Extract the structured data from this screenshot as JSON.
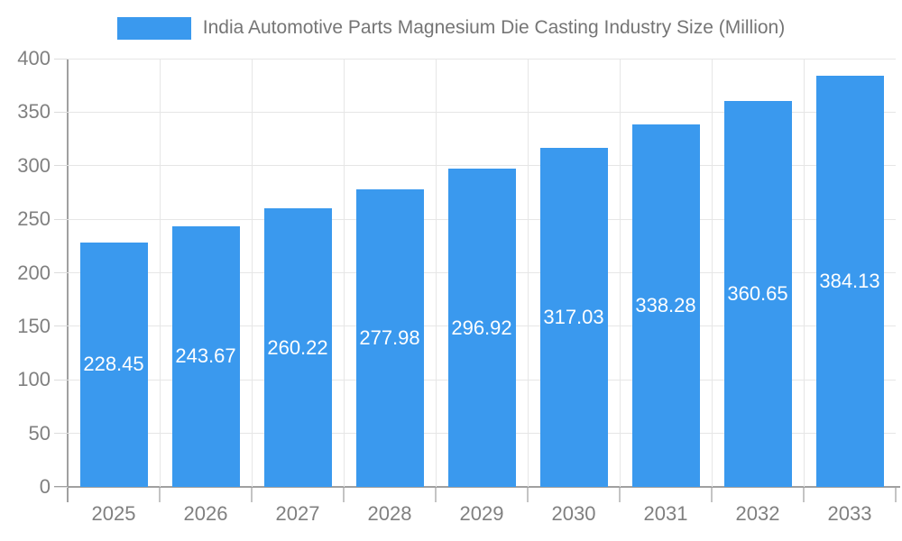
{
  "legend": {
    "label": "India Automotive Parts Magnesium Die Casting Industry Size (Million)",
    "swatch_color": "#3A99EE"
  },
  "chart_data": {
    "type": "bar",
    "title": "India Automotive Parts Magnesium Die Casting Industry Size (Million)",
    "categories": [
      "2025",
      "2026",
      "2027",
      "2028",
      "2029",
      "2030",
      "2031",
      "2032",
      "2033"
    ],
    "values": [
      228.45,
      243.67,
      260.22,
      277.98,
      296.92,
      317.03,
      338.28,
      360.65,
      384.13
    ],
    "value_label_format": "2-decimals",
    "xlabel": "",
    "ylabel": "",
    "ylim": [
      0,
      400
    ],
    "yticks": [
      0,
      50,
      100,
      150,
      200,
      250,
      300,
      350,
      400
    ],
    "grid": true,
    "legend_position": "top",
    "colors": {
      "bar": "#3A99EE",
      "value_label": "#ffffff",
      "axis_line": "#a0a0a0",
      "gridline": "#e6e6e6",
      "tick_label": "#808080",
      "legend_text": "#757575",
      "background": "#ffffff"
    }
  }
}
